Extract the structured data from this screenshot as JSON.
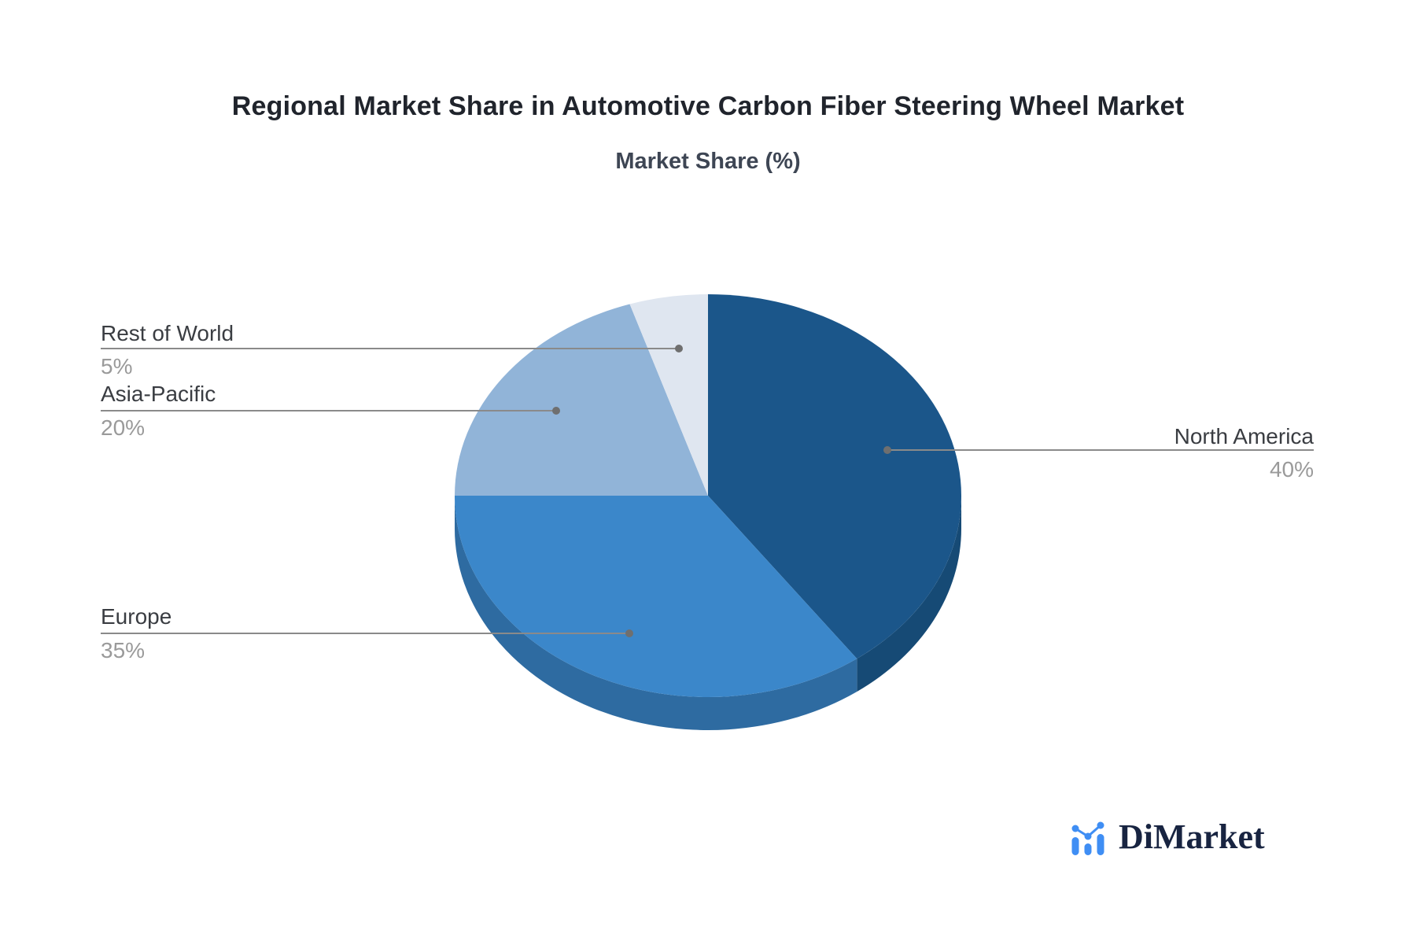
{
  "chart_data": {
    "type": "pie",
    "title": "Regional Market Share in Automotive Carbon Fiber Steering Wheel Market",
    "subtitle": "Market Share (%)",
    "categories": [
      "North America",
      "Europe",
      "Asia-Pacific",
      "Rest of World"
    ],
    "values": [
      40,
      35,
      20,
      5
    ],
    "value_labels": [
      "40%",
      "35%",
      "20%",
      "5%"
    ],
    "unit": "%",
    "colors": [
      "#1b568a",
      "#3b87ca",
      "#91b4d8",
      "#dfe6f0"
    ],
    "side_colors": [
      "#164a75",
      "#2e6ba1",
      "#7ba0c6",
      "#c4cedc"
    ],
    "start_angle_deg": 0,
    "direction": "clockwise",
    "effect_3d": true,
    "label_style": "callout-leader-lines",
    "legend_position": "none"
  },
  "branding": {
    "logo_text": "DiMarket",
    "logo_icon": "bar-chart-with-trend-dots-icon",
    "logo_text_color": "#182441",
    "logo_accent_color": "#3f8ef4"
  }
}
